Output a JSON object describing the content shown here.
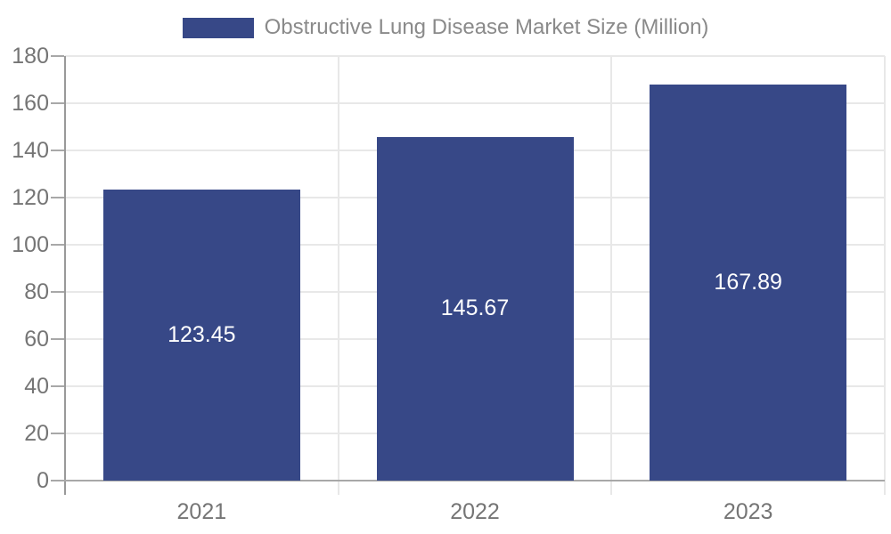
{
  "colors": {
    "bar": "#374887",
    "grid": "#e8e8e8",
    "axis": "#999999",
    "axis_secondary": "#a8a8a8",
    "tick_label": "#757575",
    "legend_text": "#8a8a8a",
    "value_label": "#ffffff",
    "background": "#ffffff"
  },
  "legend": {
    "label": "Obstructive Lung Disease Market Size (Million)"
  },
  "chart_data": {
    "type": "bar",
    "title": "Obstructive Lung Disease Market Size (Million)",
    "categories": [
      "2021",
      "2022",
      "2023"
    ],
    "values": [
      123.45,
      145.67,
      167.89
    ],
    "value_labels": [
      "123.45",
      "145.67",
      "167.89"
    ],
    "xlabel": "",
    "ylabel": "",
    "ylim": [
      0,
      180
    ],
    "yticks": [
      0,
      20,
      40,
      60,
      80,
      100,
      120,
      140,
      160,
      180
    ],
    "grid": true,
    "legend_position": "top",
    "value_labels_inside_bars": true
  }
}
